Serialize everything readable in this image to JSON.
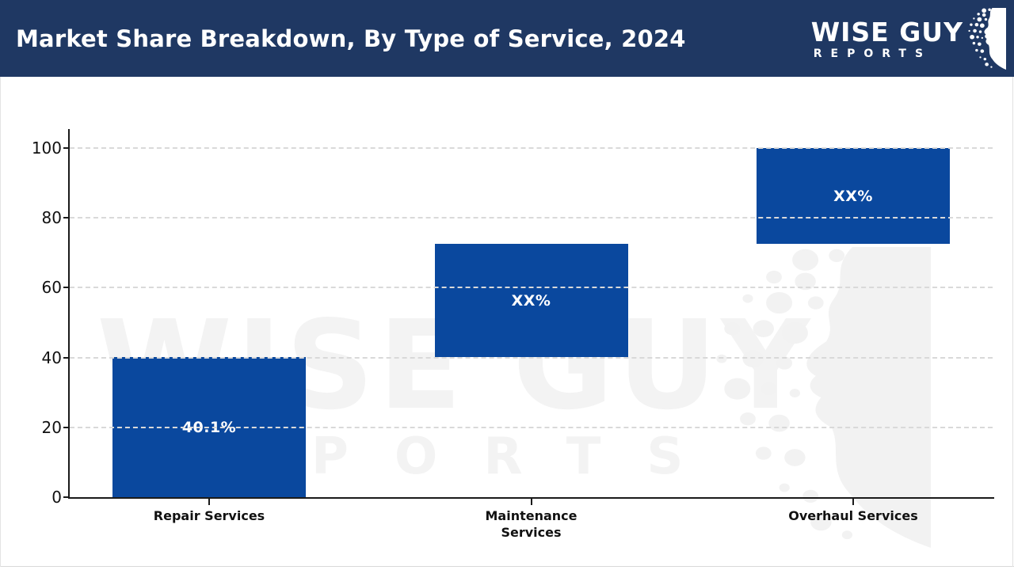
{
  "header": {
    "title": "Market Share Breakdown, By Type of Service, 2024",
    "logo": {
      "wordmark": "WISE GUY",
      "sub": "REPORTS"
    }
  },
  "watermark": {
    "wordmark": "WISE GUY",
    "sub": "REPORTS"
  },
  "chart_data": {
    "type": "bar",
    "variant": "stacked-percentage-waterfall",
    "title": "Market Share Breakdown, By Type of Service, 2024",
    "categories": [
      "Repair Services",
      "Maintenance Services",
      "Overhaul Services"
    ],
    "tick_labels": [
      "Repair Services",
      "Maintenance\nServices",
      "Overhaul Services"
    ],
    "bars": [
      {
        "category": "Repair Services",
        "start": 0,
        "end": 40.1,
        "label": "40.1%"
      },
      {
        "category": "Maintenance Services",
        "start": 40.1,
        "end": 72.5,
        "label": "XX%"
      },
      {
        "category": "Overhaul Services",
        "start": 72.5,
        "end": 100,
        "label": "XX%"
      }
    ],
    "ylim": [
      0,
      105
    ],
    "yticks": [
      0,
      20,
      40,
      60,
      80,
      100
    ],
    "xlabel": "",
    "ylabel": "",
    "grid": "horizontal-dashed",
    "grid_above_bars": true,
    "legend": "none",
    "colors": {
      "bar": "#0A489E",
      "bar_label": "#FFFFFF",
      "grid": "#D9D9D9",
      "axis": "#1A1A1A",
      "tick_label": "#111111",
      "header_bg": "#1F3863",
      "watermark": "#F2F2F2"
    }
  }
}
